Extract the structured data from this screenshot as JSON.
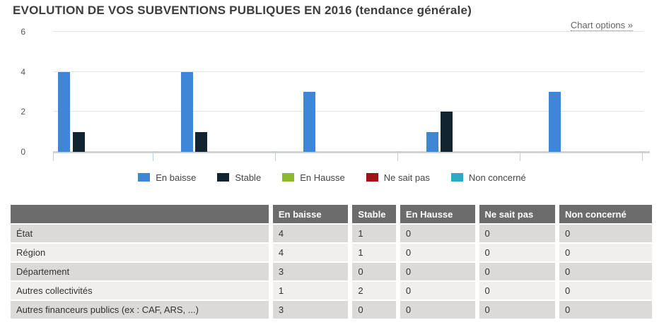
{
  "header": {
    "title": "EVOLUTION DE VOS SUBVENTIONS PUBLIQUES EN 2016 (tendance générale)",
    "chart_options_label": "Chart options »"
  },
  "chart_data": {
    "type": "bar",
    "title": "EVOLUTION DE VOS SUBVENTIONS PUBLIQUES EN 2016 (tendance générale)",
    "categories": [
      "État",
      "Région",
      "Département",
      "Autres collectivités",
      "Autres financeurs publics (ex : CAF, ARS, ...)"
    ],
    "series": [
      {
        "name": "En baisse",
        "color": "#3d86d8",
        "values": [
          4,
          4,
          3,
          1,
          3
        ]
      },
      {
        "name": "Stable",
        "color": "#132431",
        "values": [
          1,
          1,
          0,
          2,
          0
        ]
      },
      {
        "name": "En Hausse",
        "color": "#8cb92e",
        "values": [
          0,
          0,
          0,
          0,
          0
        ]
      },
      {
        "name": "Ne sait pas",
        "color": "#a21115",
        "values": [
          0,
          0,
          0,
          0,
          0
        ]
      },
      {
        "name": "Non concerné",
        "color": "#2aaac4",
        "values": [
          0,
          0,
          0,
          0,
          0
        ]
      }
    ],
    "ylim": [
      0,
      6
    ],
    "yticks": [
      0,
      2,
      4,
      6
    ],
    "grid": true,
    "legend_position": "bottom",
    "x_axis_labels_hidden": true
  },
  "table": {
    "columns": [
      "",
      "En baisse",
      "Stable",
      "En Hausse",
      "Ne sait pas",
      "Non concerné"
    ],
    "rows": [
      {
        "label": "État",
        "values": [
          4,
          1,
          0,
          0,
          0
        ]
      },
      {
        "label": "Région",
        "values": [
          4,
          1,
          0,
          0,
          0
        ]
      },
      {
        "label": "Département",
        "values": [
          3,
          0,
          0,
          0,
          0
        ]
      },
      {
        "label": "Autres collectivités",
        "values": [
          1,
          2,
          0,
          0,
          0
        ]
      },
      {
        "label": "Autres financeurs publics (ex : CAF, ARS, ...)",
        "values": [
          3,
          0,
          0,
          0,
          0
        ]
      }
    ]
  }
}
